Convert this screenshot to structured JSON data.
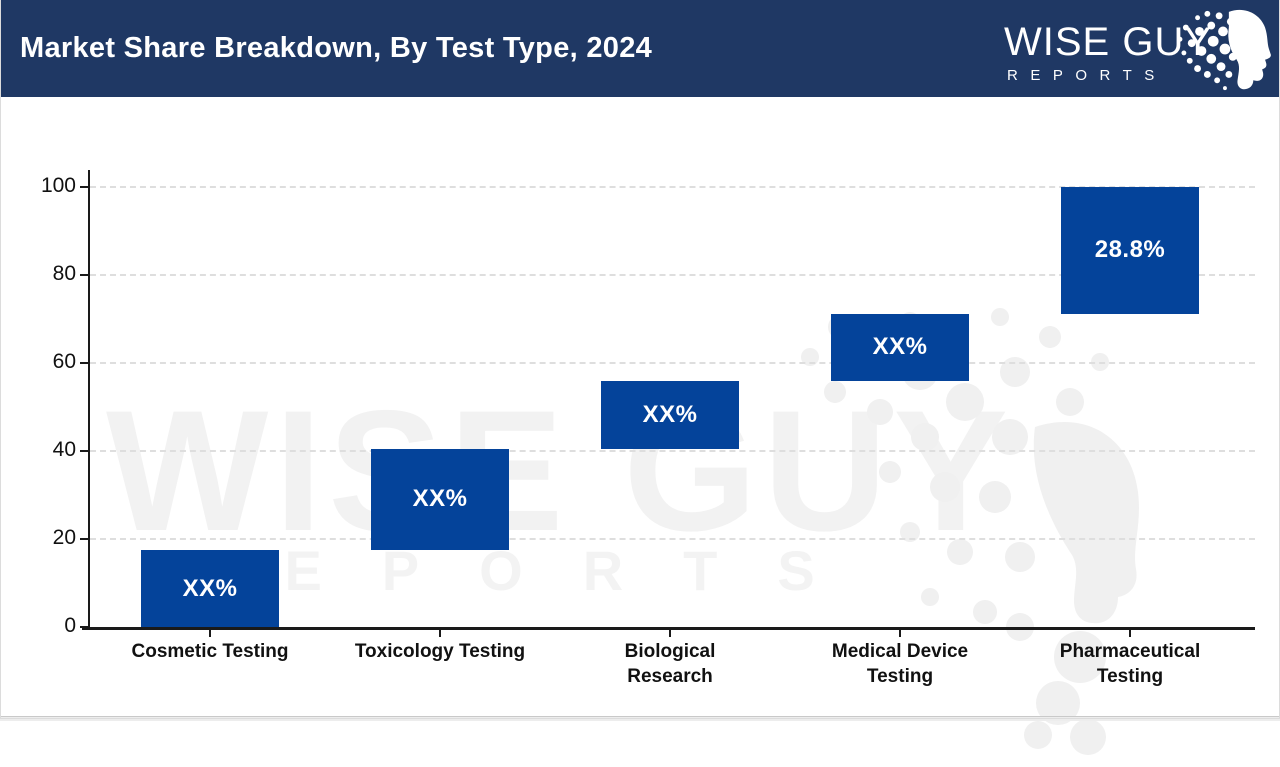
{
  "header": {
    "title": "Market Share Breakdown, By Test Type, 2024",
    "logo": {
      "line1": "WISE GUY",
      "line2": "REPORTS"
    }
  },
  "watermark": {
    "line1": "WISE GUY",
    "line2": "REPORTS"
  },
  "chart_data": {
    "type": "bar",
    "subtype": "waterfall",
    "title": "Market Share Breakdown, By Test Type, 2024",
    "xlabel": "",
    "ylabel": "",
    "ylim": [
      0,
      100
    ],
    "yticks": [
      0,
      20,
      40,
      60,
      80,
      100
    ],
    "grid": "horizontal-dashed",
    "legend": "none",
    "colors": {
      "bar": "#04439a",
      "gridline": "#dedede",
      "axis": "#1a1a1a"
    },
    "categories": [
      {
        "label": "Cosmetic Testing",
        "lines": [
          "Cosmetic Testing"
        ]
      },
      {
        "label": "Toxicology Testing",
        "lines": [
          "Toxicology Testing"
        ]
      },
      {
        "label": "Biological Research",
        "lines": [
          "Biological",
          "Research"
        ]
      },
      {
        "label": "Medical Device Testing",
        "lines": [
          "Medical Device",
          "Testing"
        ]
      },
      {
        "label": "Pharmaceutical Testing",
        "lines": [
          "Pharmaceutical",
          "Testing"
        ]
      }
    ],
    "segments": [
      {
        "category": "Cosmetic Testing",
        "start": 0,
        "end": 17.5,
        "label": "XX%"
      },
      {
        "category": "Toxicology Testing",
        "start": 17.5,
        "end": 40.5,
        "label": "XX%"
      },
      {
        "category": "Biological Research",
        "start": 40.5,
        "end": 55.9,
        "label": "XX%"
      },
      {
        "category": "Medical Device Testing",
        "start": 55.9,
        "end": 71.2,
        "label": "XX%"
      },
      {
        "category": "Pharmaceutical Testing",
        "start": 71.2,
        "end": 100,
        "label": "28.8%"
      }
    ]
  }
}
